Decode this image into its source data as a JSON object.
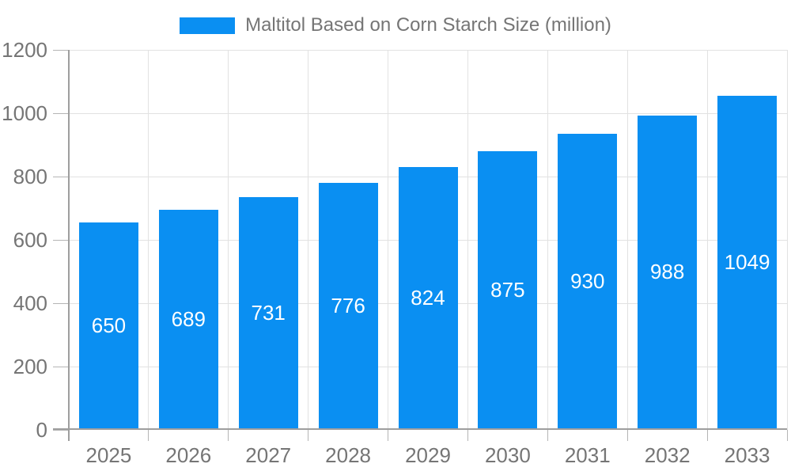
{
  "legend": {
    "label": "Maltitol Based on Corn Starch Size (million)"
  },
  "chart_data": {
    "type": "bar",
    "title": "Maltitol Based on Corn Starch Size (million)",
    "categories": [
      "2025",
      "2026",
      "2027",
      "2028",
      "2029",
      "2030",
      "2031",
      "2032",
      "2033"
    ],
    "values": [
      650,
      689,
      731,
      776,
      824,
      875,
      930,
      988,
      1049
    ],
    "xlabel": "",
    "ylabel": "",
    "ylim": [
      0,
      1200
    ],
    "ytick_step": 200,
    "ytick_labels": [
      "0",
      "200",
      "400",
      "600",
      "800",
      "1000",
      "1200"
    ],
    "grid": true,
    "legend_position": "top",
    "value_labels": "inside-center"
  },
  "colors": {
    "bar": "#0a8ff2",
    "value_label": "#ffffff",
    "text": "#757575",
    "grid": "#e2e2e2",
    "axis": "#9e9e9e",
    "tick": "#b5b5b5",
    "background": "#ffffff"
  }
}
